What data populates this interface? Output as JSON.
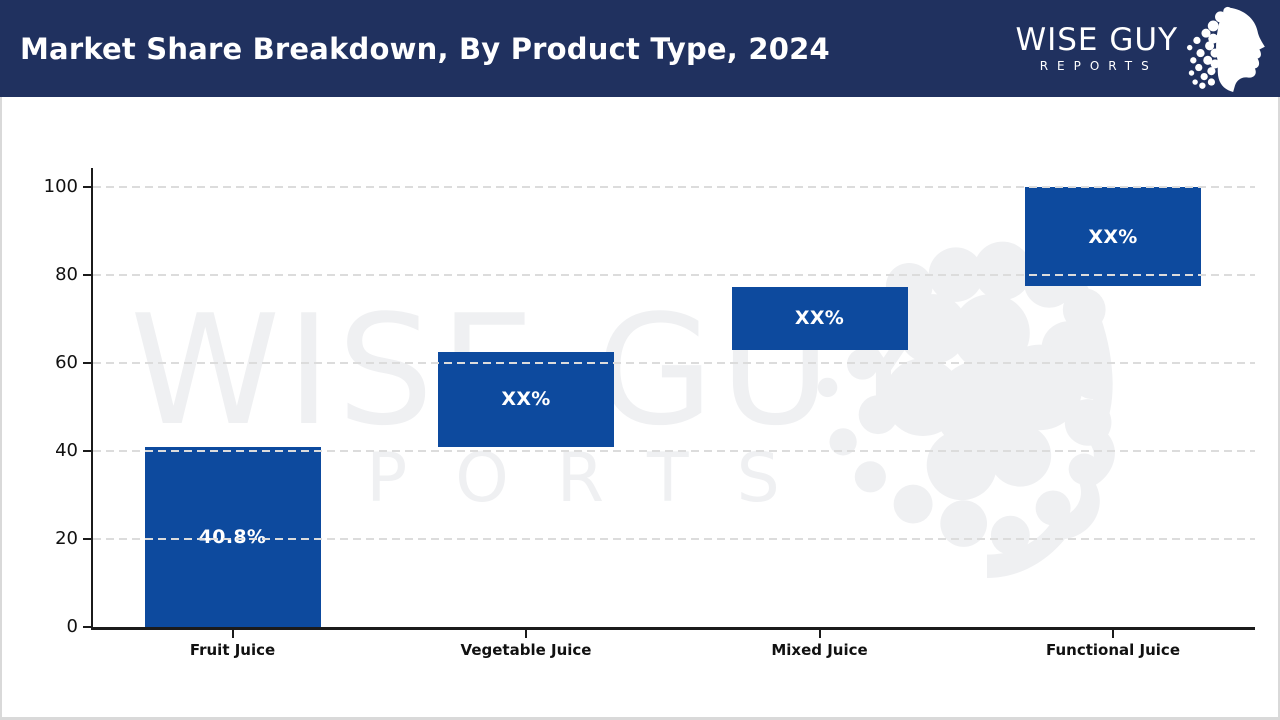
{
  "page": {
    "background": "#ffffff",
    "border_color": "#d9d9d9"
  },
  "header": {
    "bg": "#20315f",
    "title": "Market Share Breakdown, By Product Type, 2024",
    "logo": {
      "wordmark": "WISE GUY",
      "subtext": "REPORTS"
    }
  },
  "watermark": {
    "line1": "WISE GUY",
    "line2": "REPORTS"
  },
  "chart_data": {
    "type": "bar",
    "variant": "waterfall",
    "title": "Market Share Breakdown, By Product Type, 2024",
    "categories": [
      "Fruit Juice",
      "Vegetable Juice",
      "Mixed Juice",
      "Functional Juice"
    ],
    "segments": [
      {
        "category": "Fruit Juice",
        "start": 0,
        "end": 40.8,
        "label": "40.8%"
      },
      {
        "category": "Vegetable Juice",
        "start": 41,
        "end": 62.5,
        "label": "XX%"
      },
      {
        "category": "Mixed Juice",
        "start": 63,
        "end": 77.3,
        "label": "XX%"
      },
      {
        "category": "Functional Juice",
        "start": 77.5,
        "end": 100,
        "label": "XX%"
      }
    ],
    "ylim": [
      0,
      100
    ],
    "yticks": [
      0,
      20,
      40,
      60,
      80,
      100
    ],
    "xlabel": "",
    "ylabel": "",
    "grid": "horizontal-dashed",
    "legend": "none",
    "bar_color": "#0d4a9e",
    "bar_label_color": "#ffffff",
    "axis_color": "#1b1b1b",
    "gridline_color": "#dcdcdc"
  }
}
